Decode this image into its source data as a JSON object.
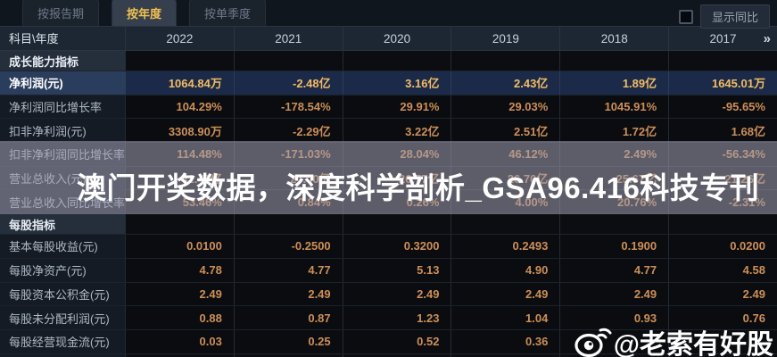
{
  "tabs": [
    {
      "label": "按报告期",
      "active": false
    },
    {
      "label": "按年度",
      "active": true
    },
    {
      "label": "按单季度",
      "active": false
    }
  ],
  "controls": {
    "yoy_checkbox_checked": false,
    "yoy_label": "显示同比"
  },
  "table": {
    "corner_label": "科目\\年度",
    "years": [
      "2022",
      "2021",
      "2020",
      "2019",
      "2018",
      "2017"
    ],
    "more_icon": "»",
    "sections": [
      {
        "title": "成长能力指标",
        "rows": [
          {
            "label": "净利润(元)",
            "highlight": true,
            "values": [
              "1064.84万",
              "-2.48亿",
              "3.16亿",
              "2.43亿",
              "1.89亿",
              "1645.01万"
            ]
          },
          {
            "label": "净利润同比增长率",
            "highlight": false,
            "values": [
              "104.29%",
              "-178.54%",
              "29.91%",
              "29.03%",
              "1045.91%",
              "-95.65%"
            ]
          },
          {
            "label": "扣非净利润(元)",
            "highlight": false,
            "values": [
              "3308.90万",
              "-2.29亿",
              "3.22亿",
              "2.51亿",
              "1.72亿",
              "1.68亿"
            ]
          },
          {
            "label": "扣非净利润同比增长率",
            "highlight": false,
            "values": [
              "114.48%",
              "-171.03%",
              "28.04%",
              "46.12%",
              "2.49%",
              "-56.34%"
            ]
          },
          {
            "label": "营业总收入(元)",
            "highlight": false,
            "values": [
              "41.43亿",
              "27.00亿",
              "26.77亿",
              "26.70亿",
              "25.67亿",
              "21.26亿"
            ]
          },
          {
            "label": "营业总收入同比增长率",
            "highlight": false,
            "values": [
              "53.46%",
              "0.84%",
              "0.26%",
              "4.00%",
              "20.76%",
              "-2.31%"
            ]
          }
        ]
      },
      {
        "title": "每股指标",
        "rows": [
          {
            "label": "基本每股收益(元)",
            "highlight": false,
            "values": [
              "0.0100",
              "-0.2500",
              "0.3200",
              "0.2493",
              "0.1900",
              "0.0200"
            ]
          },
          {
            "label": "每股净资产(元)",
            "highlight": false,
            "values": [
              "4.78",
              "4.77",
              "5.13",
              "4.90",
              "4.77",
              "4.58"
            ]
          },
          {
            "label": "每股资本公积金(元)",
            "highlight": false,
            "values": [
              "2.49",
              "2.49",
              "2.49",
              "2.49",
              "2.49",
              "2.49"
            ]
          },
          {
            "label": "每股未分配利润(元)",
            "highlight": false,
            "values": [
              "0.88",
              "0.87",
              "1.23",
              "1.04",
              "0.93",
              "0.76"
            ]
          },
          {
            "label": "每股经营现金流(元)",
            "highlight": false,
            "values": [
              "0.03",
              "0.25",
              "0.52",
              "0.36",
              "",
              ""
            ]
          }
        ]
      }
    ]
  },
  "watermark": {
    "banner_text": "澳门开奖数据，深度科学剖析_GSA96.416科技专刊",
    "weibo_text": "@老索有好股"
  },
  "colors": {
    "accent_gold": "#f2c14e",
    "value_orange": "#cd8f55",
    "highlight_row_bg": "#1b2a48",
    "header_bg": "#1d2733"
  }
}
